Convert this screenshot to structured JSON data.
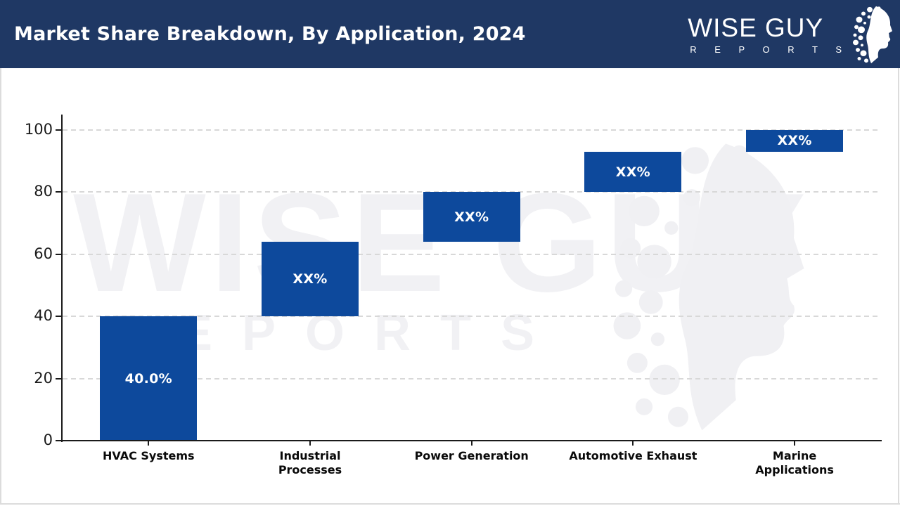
{
  "header": {
    "title": "Market Share Breakdown, By Application, 2024",
    "logo_line1": "WISE GUY",
    "logo_line2": "R E P O R T S"
  },
  "watermark": {
    "line1": "WISE GUY",
    "line2": "REPORTS"
  },
  "chart_data": {
    "type": "bar",
    "variant": "waterfall",
    "title": "Market Share Breakdown, By Application, 2024",
    "categories": [
      "HVAC Systems",
      "Industrial Processes",
      "Power Generation",
      "Automotive Exhaust",
      "Marine Applications"
    ],
    "category_lines": [
      [
        "HVAC Systems"
      ],
      [
        "Industrial",
        "Processes"
      ],
      [
        "Power Generation"
      ],
      [
        "Automotive Exhaust"
      ],
      [
        "Marine",
        "Applications"
      ]
    ],
    "segments": [
      {
        "category": "HVAC Systems",
        "start": 0,
        "end": 40,
        "label": "40.0%"
      },
      {
        "category": "Industrial Processes",
        "start": 40,
        "end": 64,
        "label": "XX%"
      },
      {
        "category": "Power Generation",
        "start": 64,
        "end": 80,
        "label": "XX%"
      },
      {
        "category": "Automotive Exhaust",
        "start": 80,
        "end": 93,
        "label": "XX%"
      },
      {
        "category": "Marine Applications",
        "start": 93,
        "end": 100,
        "label": "XX%"
      }
    ],
    "ylim": [
      0,
      105
    ],
    "yticks": [
      0,
      20,
      40,
      60,
      80,
      100
    ],
    "xlabel": "",
    "ylabel": "",
    "grid": "horizontal-dashed",
    "legend": "none",
    "bar_color": "#0d499c",
    "bar_label_color": "#ffffff"
  },
  "colors": {
    "header_bg": "#1f3864",
    "bar_blue": "#0d499c",
    "grid_line": "#d8d8d8",
    "axis": "#1a1a1a",
    "watermark": "#f1f1f4",
    "card_border": "#dcdcdc"
  }
}
